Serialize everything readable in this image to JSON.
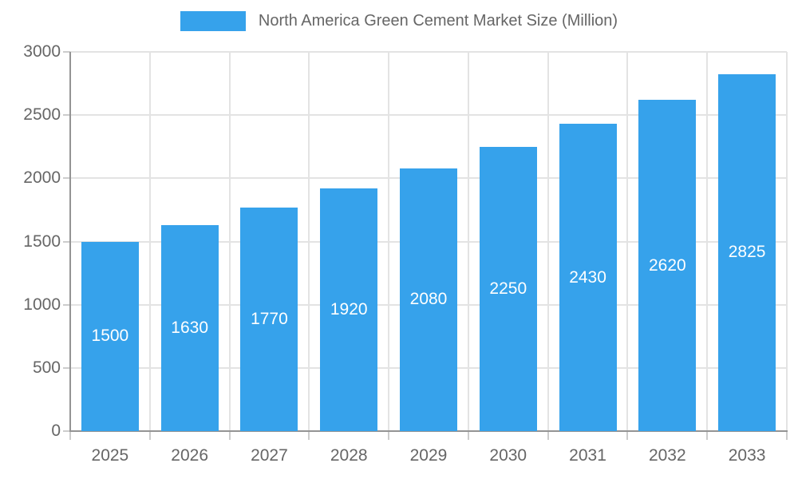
{
  "chart_data": {
    "type": "bar",
    "title": "",
    "legend": "North America Green Cement Market Size (Million)",
    "legend_position": "top",
    "categories": [
      "2025",
      "2026",
      "2027",
      "2028",
      "2029",
      "2030",
      "2031",
      "2032",
      "2033"
    ],
    "values": [
      1500,
      1630,
      1770,
      1920,
      2080,
      2250,
      2430,
      2620,
      2825
    ],
    "xlabel": "",
    "ylabel": "",
    "ylim": [
      0,
      3000
    ],
    "ytick_step": 500,
    "grid": true,
    "colors": {
      "bar": "#36A2EB",
      "bar_value_text": "#ffffff",
      "axis_line": "#949494",
      "tick_mark": "#cccccc",
      "grid_line": "#e3e3e3",
      "tick_text": "#666666",
      "legend_text": "#666666"
    }
  }
}
